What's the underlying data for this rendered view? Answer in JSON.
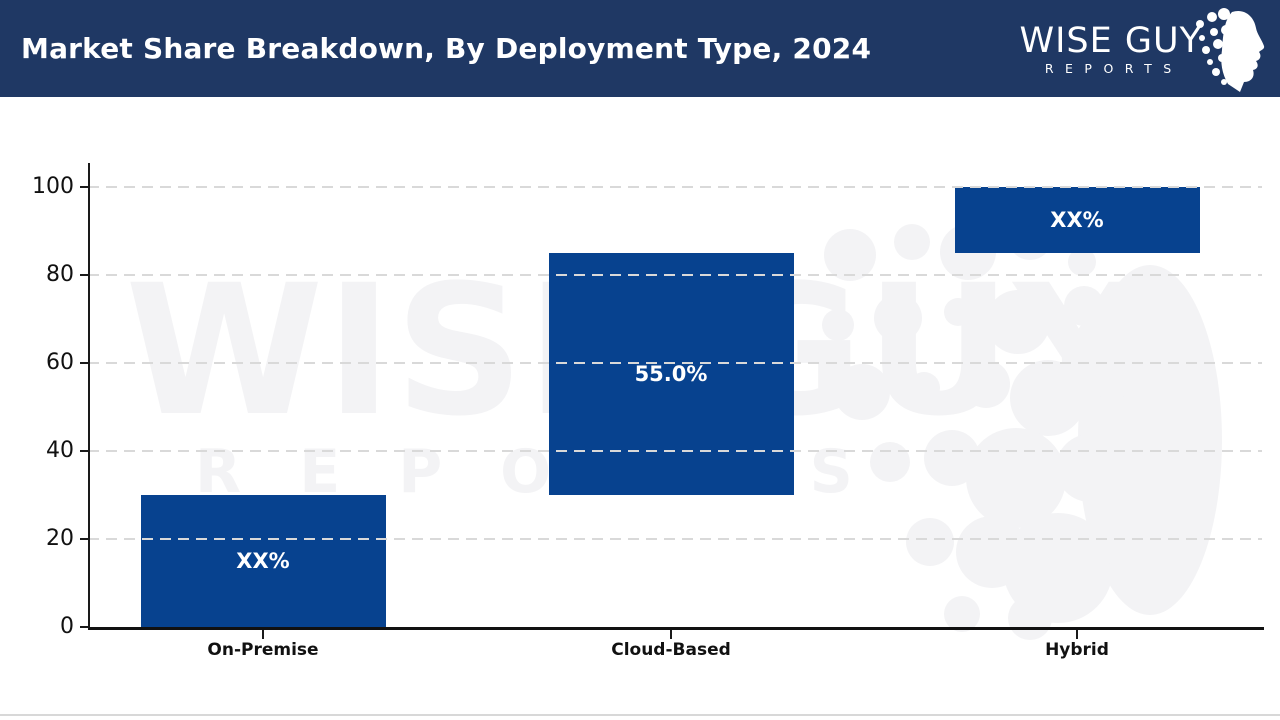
{
  "header": {
    "title": "Market Share Breakdown, By Deployment Type, 2024",
    "bg_color": "#1F3864",
    "logo": {
      "wordmark": "WISE GUY",
      "subtitle": "REPORTS"
    }
  },
  "watermark": {
    "wordmark": "WISE GUY",
    "subtitle": "REPORTS"
  },
  "chart_data": {
    "type": "bar",
    "subtype": "floating-range-bars",
    "title": "Market Share Breakdown, By Deployment Type, 2024",
    "categories": [
      "On-Premise",
      "Cloud-Based",
      "Hybrid"
    ],
    "bars": [
      {
        "category": "On-Premise",
        "start": 0,
        "end": 30,
        "value": 30,
        "label": "XX%"
      },
      {
        "category": "Cloud-Based",
        "start": 30,
        "end": 85,
        "value": 55,
        "label": "55.0%"
      },
      {
        "category": "Hybrid",
        "start": 85,
        "end": 100,
        "value": 15,
        "label": "XX%"
      }
    ],
    "xlabel": "",
    "ylabel": "",
    "ylim": [
      0,
      100
    ],
    "yticks": [
      0,
      20,
      40,
      60,
      80,
      100
    ],
    "grid": {
      "horizontal": true,
      "style": "dashed",
      "color": "#D9D9D9"
    },
    "legend": "none",
    "bar_color": "#07428F",
    "bar_label_color": "#FFFFFF",
    "axis_color": "#1A1A1A",
    "tick_label_color": "#111111"
  },
  "footer": {
    "divider_color": "#D8D8D8"
  }
}
